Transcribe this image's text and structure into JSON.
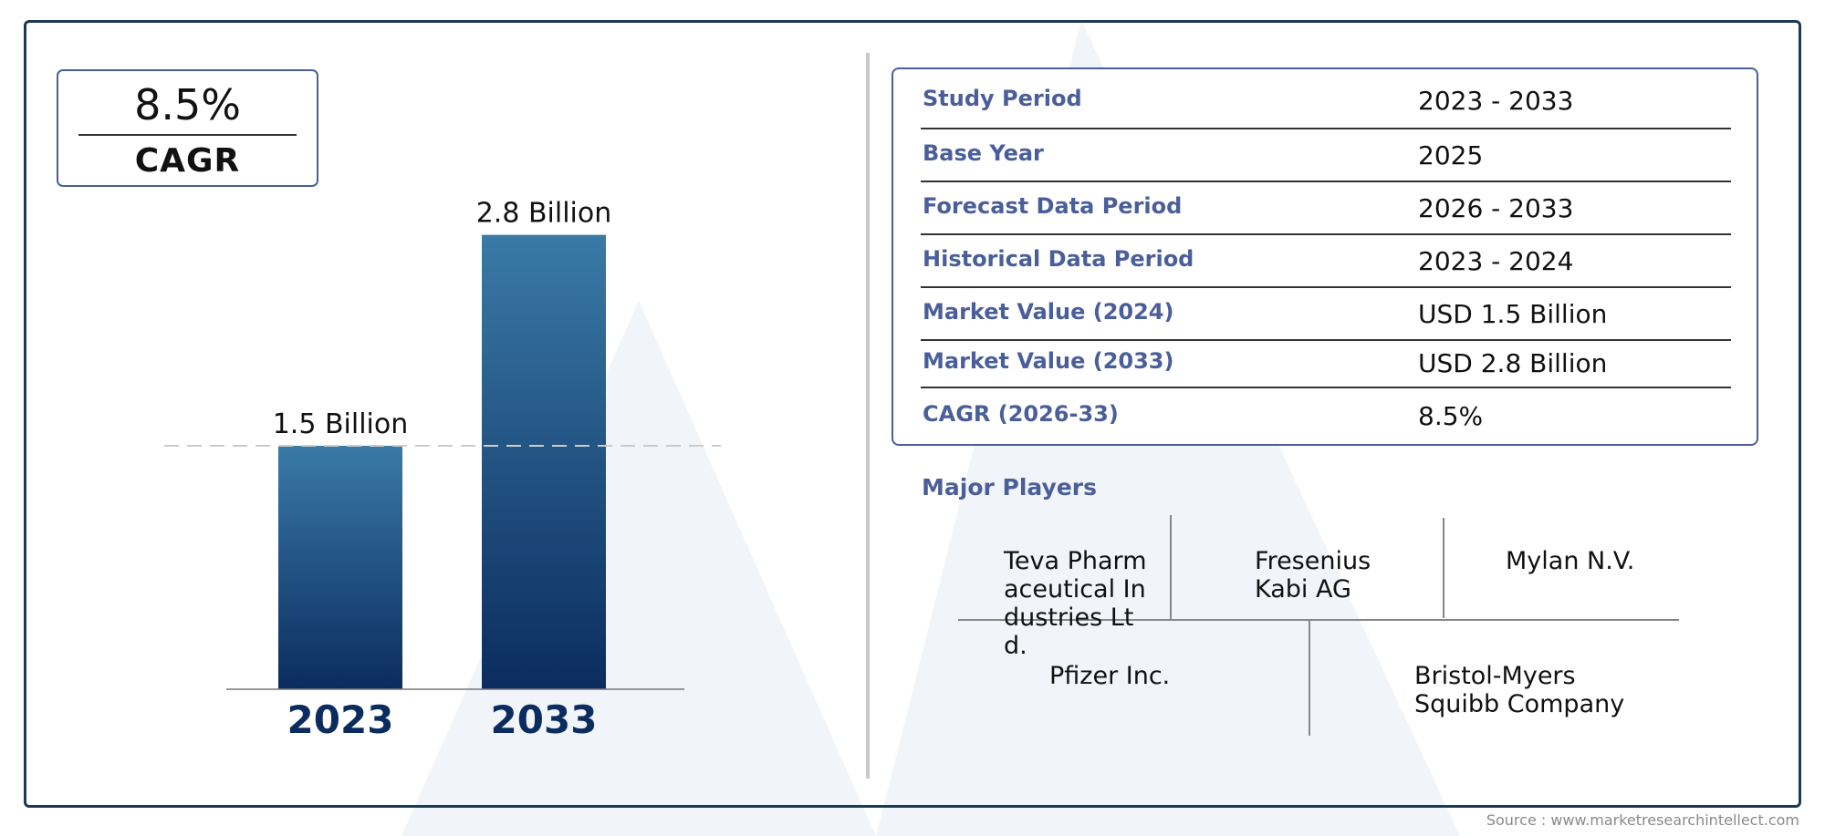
{
  "cagr": {
    "value": "8.5%",
    "label": "CAGR"
  },
  "chart_data": {
    "type": "bar",
    "categories": [
      "2023",
      "2033"
    ],
    "values": [
      1.5,
      2.8
    ],
    "value_labels": [
      "1.5 Billion",
      "2.8 Billion"
    ],
    "colors": {
      "bar_top": "#3a7aa6",
      "bar_bottom": "#0b2c5e",
      "category_label": "#0b2c5e"
    },
    "reference_line": {
      "value": 1.5,
      "style": "dashed"
    },
    "grid": false,
    "title": "",
    "xlabel": "",
    "ylabel": ""
  },
  "info": {
    "rows": [
      {
        "key": "Study Period",
        "value": "2023 - 2033"
      },
      {
        "key": "Base Year",
        "value": "2025"
      },
      {
        "key": "Forecast Data Period",
        "value": "2026 - 2033"
      },
      {
        "key": "Historical Data Period",
        "value": "2023 - 2024"
      },
      {
        "key": "Market Value (2024)",
        "value": "USD 1.5 Billion"
      },
      {
        "key": "Market Value (2033)",
        "value": "USD 2.8 Billion"
      },
      {
        "key": "CAGR (2026-33)",
        "value": "8.5%"
      }
    ]
  },
  "players": {
    "title": "Major Players",
    "names": [
      "Teva Pharmaceutical Industries Ltd.",
      "Fresenius Kabi AG",
      "Mylan N.V.",
      "Pfizer Inc.",
      "Bristol-Myers Squibb Company"
    ]
  },
  "source": "Source : www.marketresearchintellect.com",
  "theme": {
    "accent": "#4a5f9a",
    "frame": "#1d3a55"
  }
}
